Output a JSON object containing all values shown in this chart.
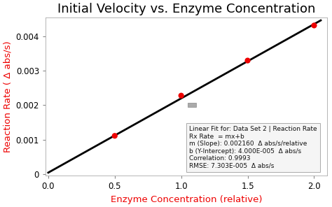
{
  "title": "Initial Velocity vs. Enzyme Concentration",
  "xlabel": "Enzyme Concentration (relative)",
  "ylabel": "Reaction Rate ( Δ abs/s)",
  "data_x": [
    0.5,
    1.0,
    1.5,
    2.0
  ],
  "data_y": [
    0.00111,
    0.00228,
    0.0033,
    0.00432
  ],
  "line_x": [
    0,
    2.05
  ],
  "slope": 0.00216,
  "intercept": 4e-05,
  "dot_color": "#ee0000",
  "line_color": "#000000",
  "title_color": "#000000",
  "axis_label_color": "#ee0000",
  "tick_label_color": "#000000",
  "xlim": [
    -0.02,
    2.1
  ],
  "ylim": [
    -5e-05,
    0.00455
  ],
  "xticks": [
    0,
    0.5,
    1.0,
    1.5,
    2.0
  ],
  "yticks": [
    0,
    0.001,
    0.002,
    0.003,
    0.004
  ],
  "ytick_labels": [
    "0",
    "0.001",
    "0.002",
    "0.003",
    "0.004"
  ],
  "annotation_title": "Linear Fit for: Data Set 2 | Reaction Rate",
  "annotation_lines": [
    "Rx Rate  = mx+b",
    "m (Slope): 0.002160  Δ abs/s/relative",
    "b (Y-Intercept): 4.000E-005  Δ abs/s",
    "Correlation: 0.9993",
    "RMSE: 7.303E-005  Δ abs/s"
  ],
  "background_color": "#ffffff",
  "title_fontsize": 13,
  "label_fontsize": 9.5,
  "tick_fontsize": 8.5,
  "annot_fontsize": 6.5,
  "dot_size": 35,
  "linewidth": 2.0
}
